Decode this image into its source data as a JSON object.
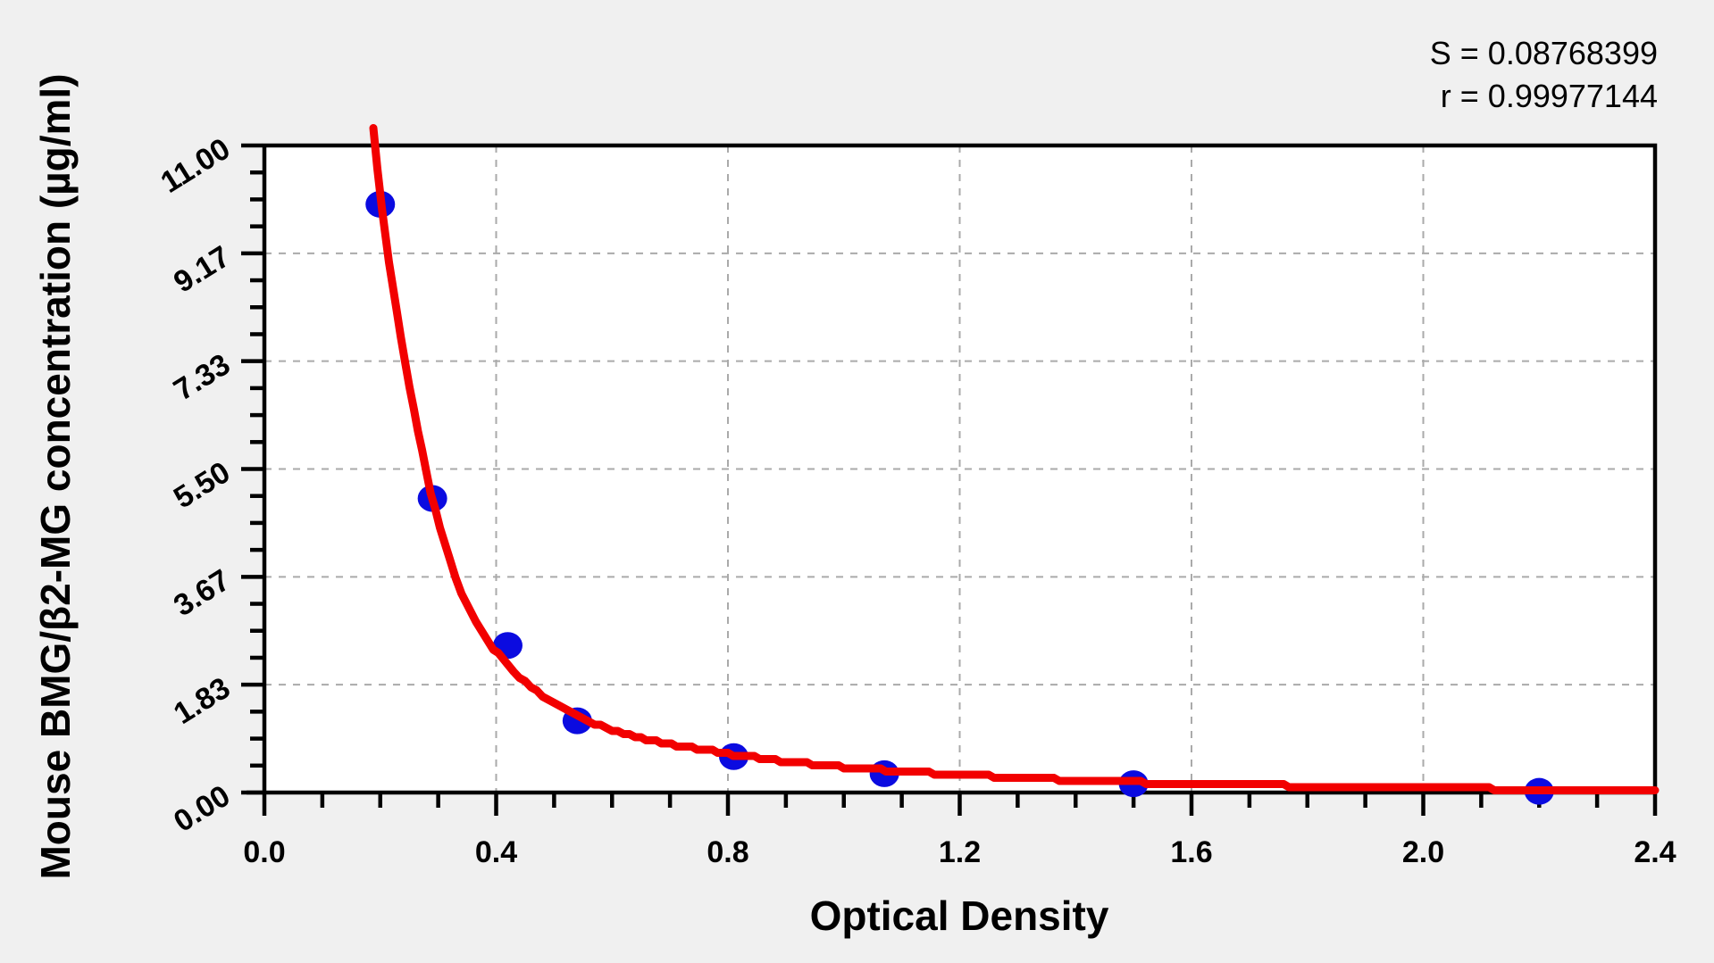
{
  "page": {
    "background_color": "#f0f0f0"
  },
  "chart_data": {
    "type": "scatter",
    "title": "",
    "xlabel": "Optical Density",
    "ylabel": "Mouse BMG/β2-MG concentration (µg/ml)",
    "stats": {
      "s": "S = 0.08768399",
      "r": "r = 0.99977144"
    },
    "x_axis": {
      "min": 0,
      "max": 2.4,
      "major_ticks": [
        0.0,
        0.4,
        0.8,
        1.2,
        1.6,
        2.0,
        2.4
      ],
      "tick_labels": [
        "0.0",
        "0.4",
        "0.8",
        "1.2",
        "1.6",
        "2.0",
        "2.4"
      ],
      "minor_step": 0.1
    },
    "y_axis": {
      "min": 0,
      "max": 11,
      "major_ticks": [
        0,
        1.8333,
        3.6667,
        5.5,
        7.3333,
        9.1667,
        11
      ],
      "tick_labels": [
        "0.00",
        "1.83",
        "3.67",
        "5.50",
        "7.33",
        "9.17",
        "11.00"
      ],
      "minor_per_major": 4
    },
    "grid": "dashed",
    "legend": "none",
    "points": [
      [
        0.2,
        10.0
      ],
      [
        0.29,
        5.0
      ],
      [
        0.42,
        2.5
      ],
      [
        0.54,
        1.22
      ],
      [
        0.81,
        0.61
      ],
      [
        1.07,
        0.32
      ],
      [
        1.5,
        0.15
      ],
      [
        2.2,
        0.02
      ]
    ],
    "curve_points": [
      [
        0.188,
        11.3
      ],
      [
        0.195,
        10.6
      ],
      [
        0.203,
        9.9
      ],
      [
        0.215,
        9.0
      ],
      [
        0.228,
        8.2
      ],
      [
        0.243,
        7.3
      ],
      [
        0.258,
        6.5
      ],
      [
        0.272,
        5.8
      ],
      [
        0.287,
        5.1
      ],
      [
        0.303,
        4.5
      ],
      [
        0.32,
        3.95
      ],
      [
        0.34,
        3.4
      ],
      [
        0.365,
        2.9
      ],
      [
        0.395,
        2.45
      ],
      [
        0.43,
        2.05
      ],
      [
        0.47,
        1.72
      ],
      [
        0.51,
        1.45
      ],
      [
        0.55,
        1.25
      ],
      [
        0.6,
        1.06
      ],
      [
        0.65,
        0.93
      ],
      [
        0.72,
        0.79
      ],
      [
        0.8,
        0.66
      ],
      [
        0.9,
        0.53
      ],
      [
        1.0,
        0.43
      ],
      [
        1.1,
        0.36
      ],
      [
        1.25,
        0.28
      ],
      [
        1.4,
        0.21
      ],
      [
        1.55,
        0.16
      ],
      [
        1.75,
        0.12
      ],
      [
        1.95,
        0.09
      ],
      [
        2.15,
        0.06
      ],
      [
        2.4,
        0.05
      ]
    ],
    "colors": {
      "curve": "#f20000",
      "points": "#0b0be0",
      "grid": "#aaaaaa",
      "axis": "#000000",
      "plot_bg": "#ffffff",
      "page_bg": "#f0f0f0",
      "text": "#000000"
    }
  }
}
